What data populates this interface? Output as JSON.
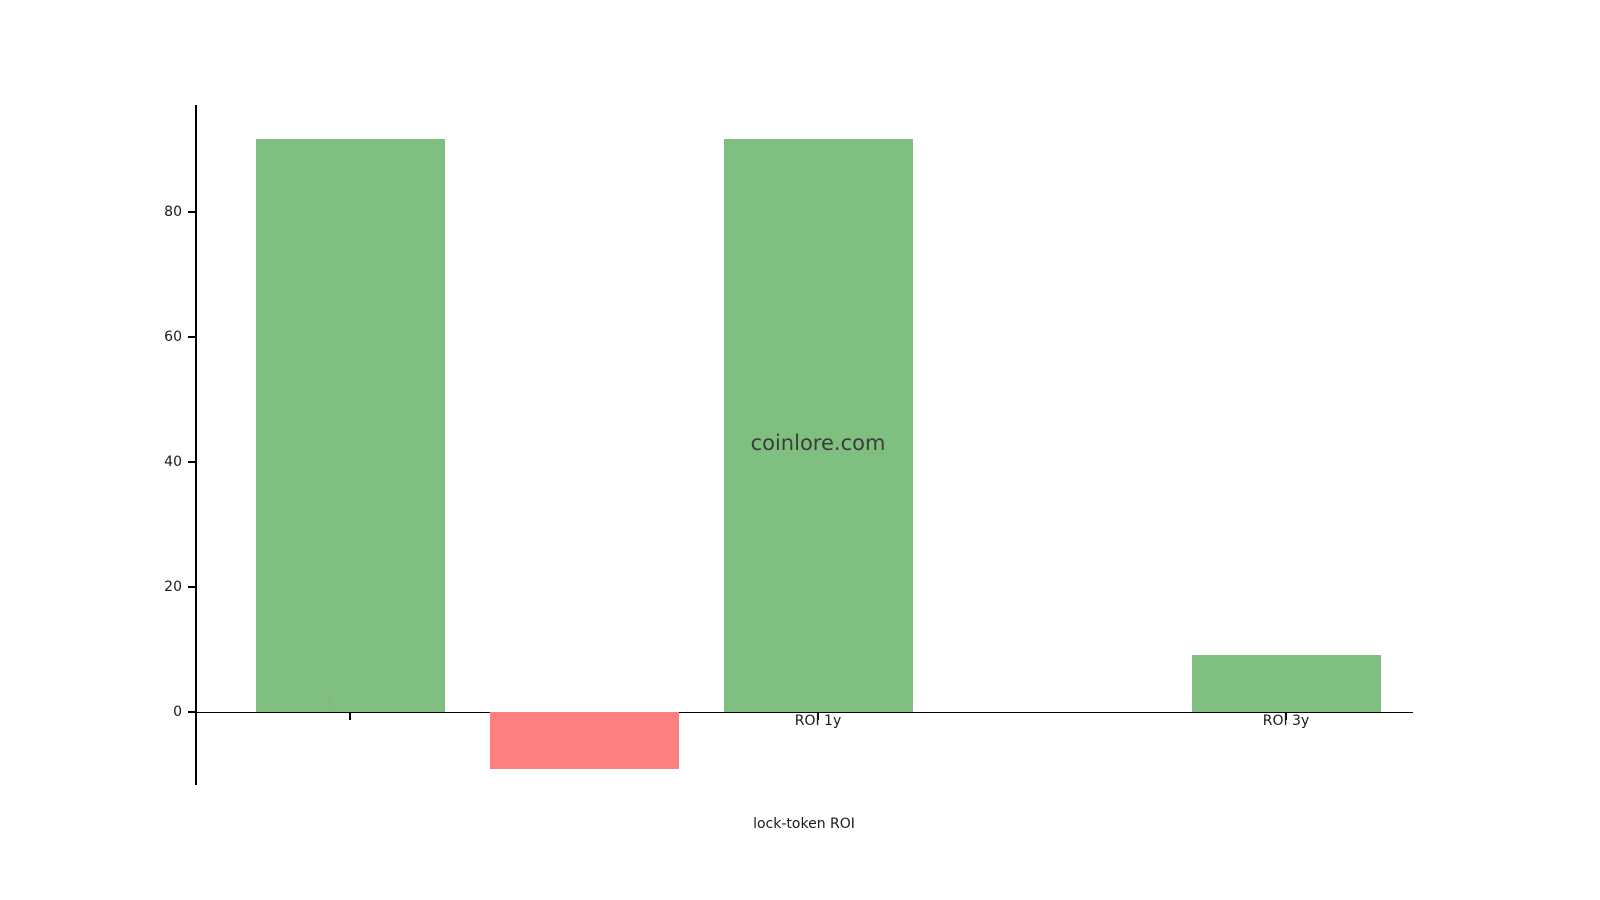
{
  "watermark": "coinlore.com",
  "chart_data": {
    "type": "bar",
    "title": "",
    "xlabel": "lock-token ROI",
    "ylabel": "",
    "categories": [
      "",
      "",
      "ROI 1y",
      "",
      "ROI 3y"
    ],
    "values": [
      91.7,
      -9.1,
      91.7,
      null,
      9.1
    ],
    "yticks": [
      0,
      20,
      40,
      60,
      80
    ],
    "ylim": [
      -11.7,
      97
    ],
    "grid": false,
    "legend": false,
    "watermark": "coinlore.com",
    "xticks": [
      {
        "pos": 0,
        "label": "/",
        "muted": true
      },
      {
        "pos": 2,
        "label": "ROI 1y",
        "muted": false
      },
      {
        "pos": 4,
        "label": "ROI 3y",
        "muted": false
      }
    ],
    "colors": {
      "positive": "#7fbf7f",
      "negative": "#ff7f7f",
      "axis": "#000000",
      "text": "#1a1a1a",
      "watermark": "#3d3d3d"
    }
  }
}
